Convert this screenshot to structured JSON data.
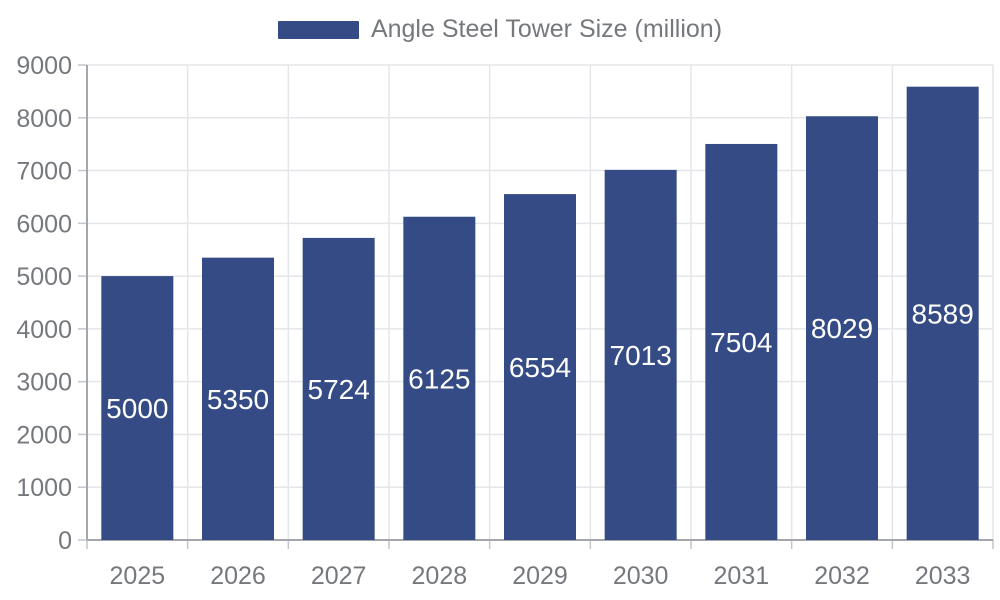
{
  "legend": {
    "label": "Angle Steel Tower Size (million)"
  },
  "chart_data": {
    "type": "bar",
    "title": "",
    "categories": [
      "2025",
      "2026",
      "2027",
      "2028",
      "2029",
      "2030",
      "2031",
      "2032",
      "2033"
    ],
    "series": [
      {
        "name": "Angle Steel Tower Size (million)",
        "values": [
          5000,
          5350,
          5724,
          6125,
          6554,
          7013,
          7504,
          8029,
          8589
        ]
      }
    ],
    "xlabel": "",
    "ylabel": "",
    "ylim": [
      0,
      9000
    ],
    "ytick_interval": 1000,
    "grid": true,
    "legend_position": "top-center",
    "bar_labels_inside": true,
    "colors": {
      "bar": "#354b85",
      "bar_label": "#ffffff",
      "axis_label": "#75787d",
      "grid_line": "#e5e6ea",
      "axis_line": "#a3a6ab",
      "tick_mark": "#c2c6ce",
      "background": "#ffffff"
    }
  }
}
